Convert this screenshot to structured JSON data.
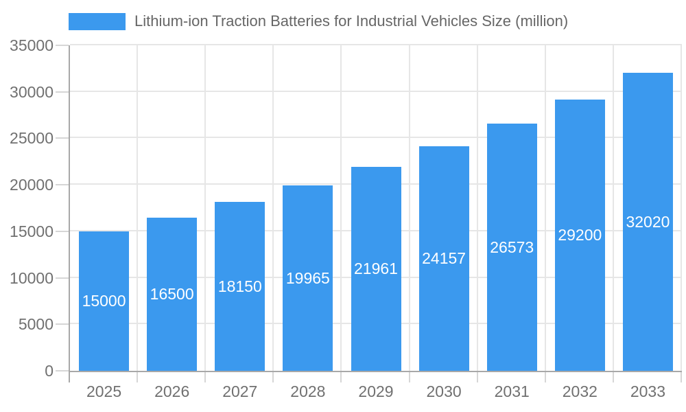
{
  "chart_data": {
    "type": "bar",
    "title": "",
    "legend": "Lithium-ion Traction Batteries for Industrial Vehicles Size (million)",
    "legend_position": "top",
    "categories": [
      "2025",
      "2026",
      "2027",
      "2028",
      "2029",
      "2030",
      "2031",
      "2032",
      "2033"
    ],
    "series": [
      {
        "name": "Lithium-ion Traction Batteries for Industrial Vehicles Size (million)",
        "values": [
          15000,
          16500,
          18150,
          19965,
          21961,
          24157,
          26573,
          29200,
          32020
        ]
      }
    ],
    "xlabel": "",
    "ylabel": "",
    "ylim": [
      0,
      35000
    ],
    "yticks": [
      0,
      5000,
      10000,
      15000,
      20000,
      25000,
      30000,
      35000
    ],
    "grid": true,
    "value_labels_shown": true,
    "colors": {
      "bar": "#3B99EE",
      "grid": "#E6E6E6",
      "axis": "#A8A8A8",
      "tick": "#D6D6D6",
      "tick_label": "#707070",
      "legend_text": "#666666",
      "bar_label": "#FFFFFF",
      "background": "#FFFFFF"
    }
  }
}
